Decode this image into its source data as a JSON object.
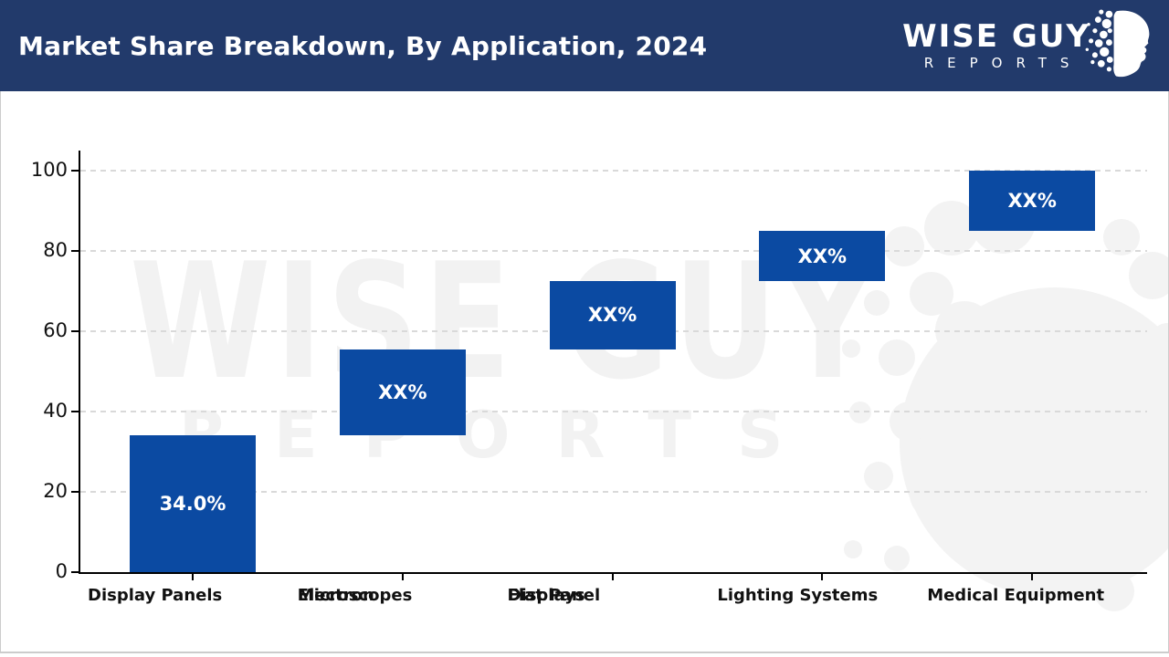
{
  "header": {
    "title": "Market Share Breakdown, By Application, 2024",
    "logo": {
      "line1": "WISE GUY",
      "line2": "REPORTS"
    }
  },
  "watermark": {
    "line1": "WISE GUY",
    "line2": "REPORTS"
  },
  "colors": {
    "header_bg": "#223a6b",
    "bar": "#0b4aa2",
    "bar_label_text": "#ffffff",
    "grid": "#d9d9d9",
    "axis": "#000000",
    "watermark": "#f2f2f2",
    "border": "#cccccc"
  },
  "chart_data": {
    "type": "bar",
    "subtype": "waterfall",
    "title": "Market Share Breakdown, By Application, 2024",
    "categories": [
      "Display Panels",
      "Electron Microscopes",
      "Flat Panel Displays",
      "Lighting Systems",
      "Medical Equipment"
    ],
    "category_label_lines": [
      [
        "Display Panels"
      ],
      [
        "Electron",
        "Microscopes"
      ],
      [
        "Flat Panel",
        "Displays"
      ],
      [
        "Lighting Systems"
      ],
      [
        "Medical Equipment"
      ]
    ],
    "segments": [
      {
        "category": "Display Panels",
        "start": 0,
        "end": 34,
        "label": "34.0%"
      },
      {
        "category": "Electron Microscopes",
        "start": 34,
        "end": 55.5,
        "label": "XX%"
      },
      {
        "category": "Flat Panel Displays",
        "start": 55.5,
        "end": 72.5,
        "label": "XX%"
      },
      {
        "category": "Lighting Systems",
        "start": 72.5,
        "end": 85,
        "label": "XX%"
      },
      {
        "category": "Medical Equipment",
        "start": 85,
        "end": 100,
        "label": "XX%"
      }
    ],
    "xlabel": "",
    "ylabel": "",
    "yticks": [
      0,
      20,
      40,
      60,
      80,
      100
    ],
    "ylim": [
      0,
      104
    ],
    "grid": "horizontal-dashed",
    "legend": "none"
  }
}
